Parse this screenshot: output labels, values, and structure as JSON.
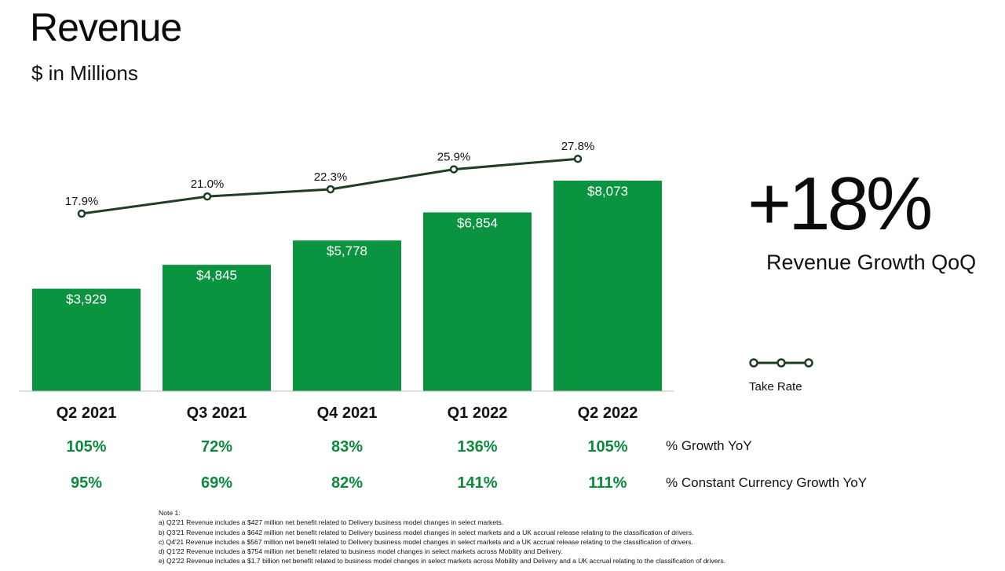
{
  "title": "Revenue",
  "subtitle": "$ in Millions",
  "headline": {
    "value": "+18%",
    "label": "Revenue Growth QoQ"
  },
  "legend": {
    "label": "Take Rate"
  },
  "rows": {
    "growth_yoy_label": "% Growth YoY",
    "cc_growth_yoy_label": "% Constant Currency Growth YoY"
  },
  "colors": {
    "bar": "#0a9440",
    "line": "#1d3d24",
    "growth_text": "#0a8a3a"
  },
  "chart_data": {
    "type": "bar",
    "categories": [
      "Q2 2021",
      "Q3 2021",
      "Q4 2021",
      "Q1 2022",
      "Q2 2022"
    ],
    "series": [
      {
        "values": [
          3929,
          4845,
          5778,
          6854,
          8073
        ],
        "labels": [
          "$3,929",
          "$4,845",
          "$5,778",
          "$6,854",
          "$8,073"
        ]
      },
      {
        "name": "Take Rate",
        "type": "line",
        "values": [
          17.9,
          21.0,
          22.3,
          25.9,
          27.8
        ],
        "labels": [
          "17.9%",
          "21.0%",
          "22.3%",
          "25.9%",
          "27.8%"
        ]
      }
    ],
    "growth_yoy": [
      "105%",
      "72%",
      "83%",
      "136%",
      "105%"
    ],
    "cc_growth_yoy": [
      "95%",
      "69%",
      "82%",
      "141%",
      "111%"
    ],
    "title": "Revenue",
    "ylabel": "",
    "grid": false
  },
  "notes": {
    "heading": "Note 1:",
    "items": [
      "a) Q2'21 Revenue includes a $427 million net benefit related to Delivery business model changes in select markets.",
      "b) Q3'21 Revenue  includes a $642 million net benefit related to Delivery business model changes in select markets and a UK accrual release relating to the classification of drivers.",
      "c) Q4'21 Revenue includes a $567 million net benefit related to Delivery business model changes in select markets and a UK accrual release relating to the classification of drivers.",
      "d) Q1'22 Revenue includes a $754 million net benefit related to business model changes in select markets across Mobility and Delivery.",
      "e) Q2'22 Revenue includes a $1.7 billion net benefit related to business model changes in select markets across Mobility and Delivery and a UK accrual relating to the classification of drivers."
    ]
  }
}
